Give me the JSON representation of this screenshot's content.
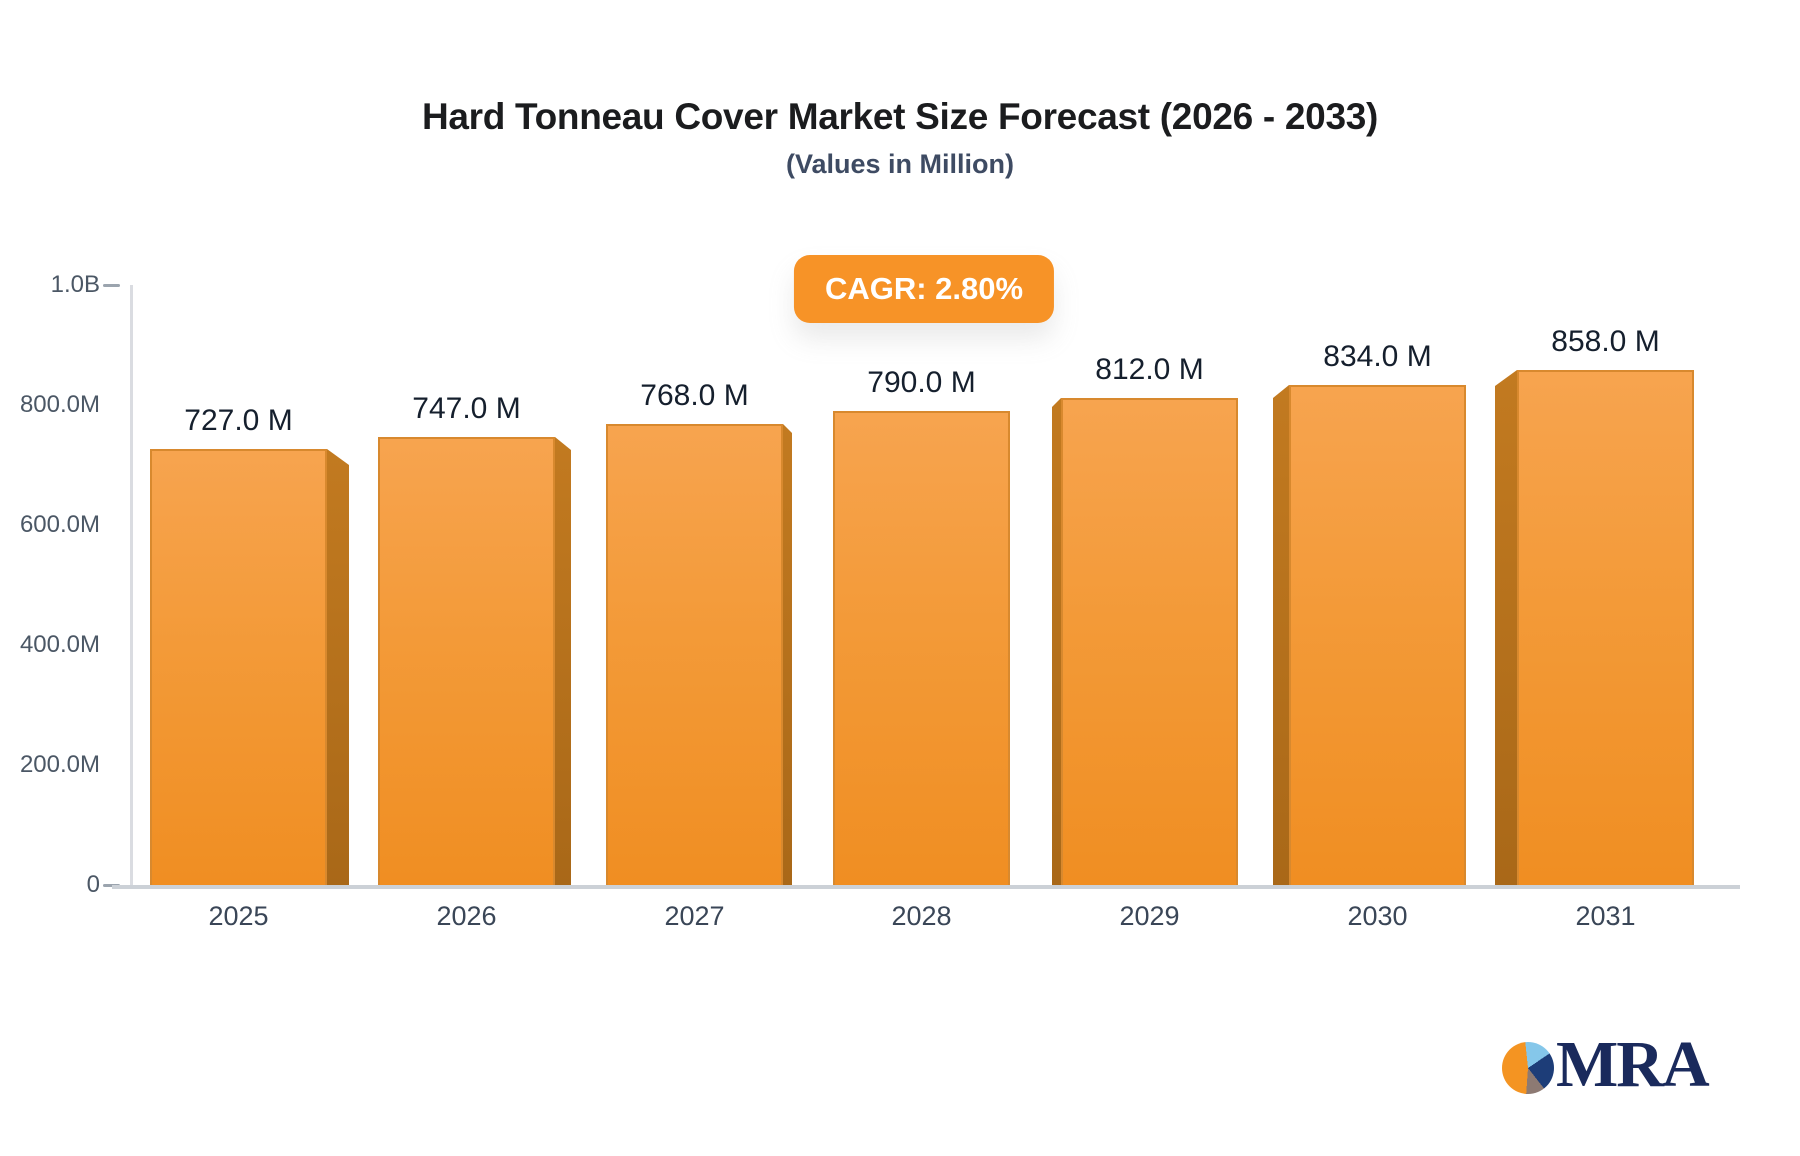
{
  "page": {
    "title": "Hard Tonneau Cover Market Size Forecast (2026 - 2033)",
    "subtitle": "(Values in Million)",
    "cagr_badge": "CAGR: 2.80%"
  },
  "logo": {
    "text": "MRA",
    "icon": "pie-chart-icon"
  },
  "colors": {
    "badge_bg": "#f79327",
    "bar_face_top": "#f7a44f",
    "bar_face_bottom": "#f08e22",
    "bar_face_border": "#d8892e",
    "bar_3d_side": "#b5701c",
    "axis_line": "#dadce1",
    "baseline": "#ccd1d7",
    "y_label_text": "#4b5765",
    "x_label_text": "#3a4657",
    "value_label_text": "#151f2d",
    "title_text": "#1b1c1e",
    "subtitle_text": "#3e4b63",
    "logo_navy": "#1d3d78",
    "logo_blue": "#85c7ea",
    "logo_gray": "#8d7a73",
    "logo_orange": "#f49422",
    "logo_text_navy": "#1a2a5c"
  },
  "chart_data": {
    "type": "bar",
    "title": "Hard Tonneau Cover Market Size Forecast (2026 - 2033)",
    "subtitle": "(Values in Million)",
    "annotation": "CAGR: 2.80%",
    "categories": [
      "2025",
      "2026",
      "2027",
      "2028",
      "2029",
      "2030",
      "2031"
    ],
    "values_millions": [
      727,
      747,
      768,
      790,
      812,
      834,
      858
    ],
    "value_labels": [
      "727.0 M",
      "747.0 M",
      "768.0 M",
      "790.0 M",
      "812.0 M",
      "834.0 M",
      "858.0 M"
    ],
    "y_ticks": [
      {
        "label": "1.0B",
        "value_millions": 1000,
        "dash": true
      },
      {
        "label": "800.0M",
        "value_millions": 800,
        "dash": false
      },
      {
        "label": "600.0M",
        "value_millions": 600,
        "dash": false
      },
      {
        "label": "400.0M",
        "value_millions": 400,
        "dash": false
      },
      {
        "label": "200.0M",
        "value_millions": 200,
        "dash": false
      },
      {
        "label": "0",
        "value_millions": 0,
        "dash": true
      }
    ],
    "ylim_millions": [
      0,
      1000
    ],
    "grid": false,
    "legend": false,
    "bar_style": "3d-perspective",
    "bar_color": "#f39a38",
    "bar_side_color": "#b5701c"
  }
}
